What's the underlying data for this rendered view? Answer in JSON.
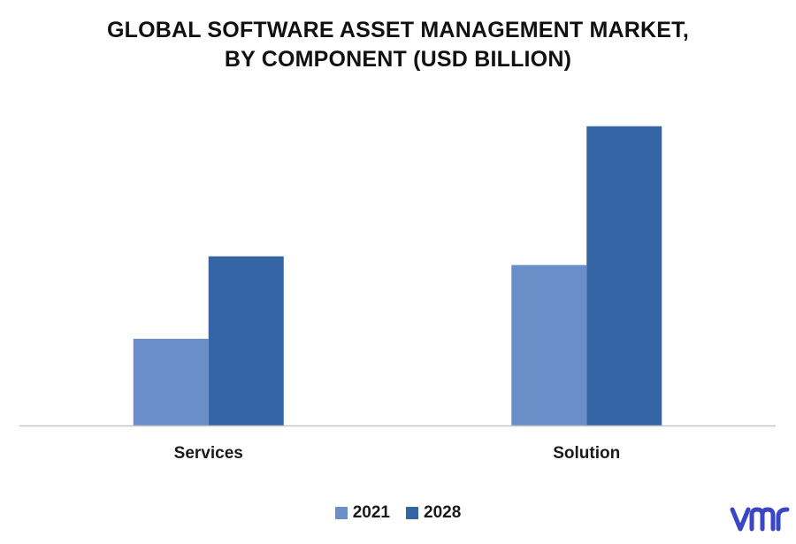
{
  "chart_data": {
    "type": "bar",
    "title_lines": [
      "GLOBAL SOFTWARE ASSET MANAGEMENT MARKET,",
      "BY COMPONENT (USD BILLION)"
    ],
    "categories": [
      "Services",
      "Solution"
    ],
    "series": [
      {
        "name": "2021",
        "values": [
          1.0,
          1.85
        ],
        "color": "#6a8fc8"
      },
      {
        "name": "2028",
        "values": [
          1.95,
          3.45
        ],
        "color": "#3665a6"
      }
    ],
    "ylim": [
      0,
      3.6
    ],
    "grid": false,
    "legend_position": "bottom-center"
  },
  "brand": {
    "logo_text": "vmr",
    "color": "#3b46c4"
  }
}
